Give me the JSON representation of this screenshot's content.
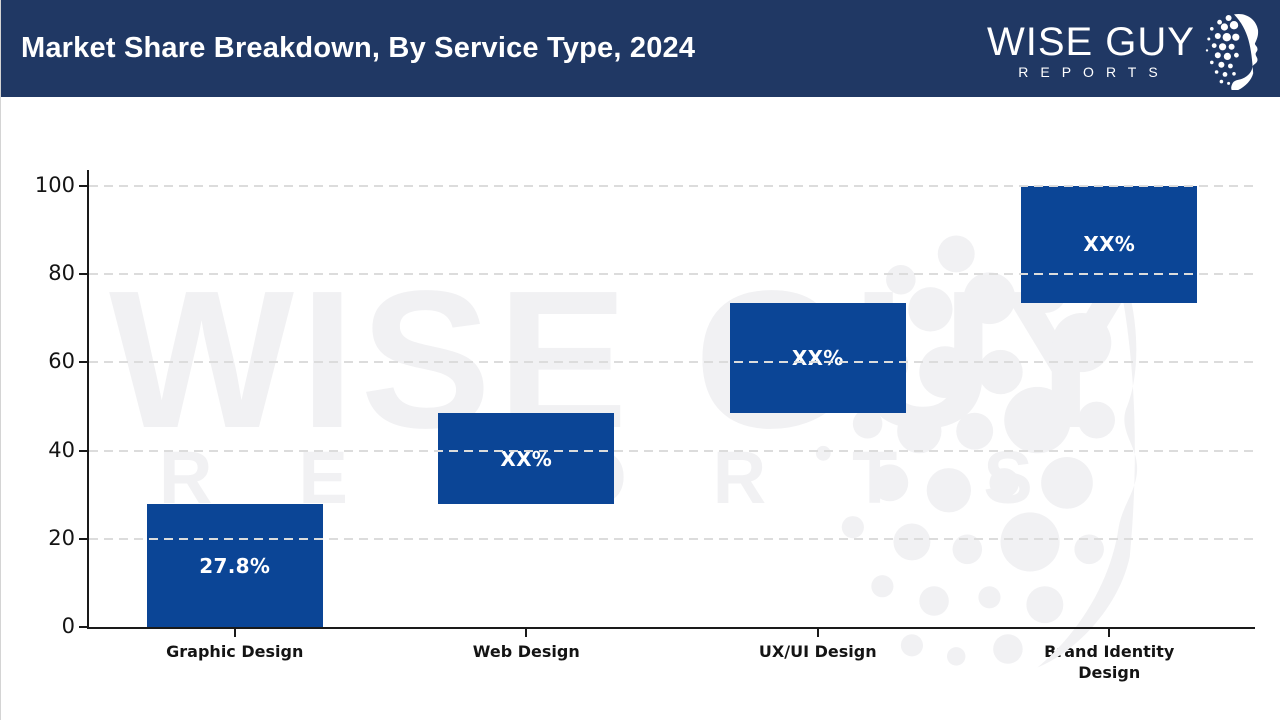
{
  "header": {
    "title": "Market Share Breakdown, By Service Type, 2024",
    "logo": {
      "line1": "WISE GUY",
      "line2": "REPORTS"
    }
  },
  "watermark": {
    "line1": "WISE GUY",
    "line2": "REPORTS"
  },
  "chart_data": {
    "type": "bar",
    "subtype": "waterfall-stacked",
    "title": "Market Share Breakdown, By Service Type, 2024",
    "categories": [
      "Graphic Design",
      "Web Design",
      "UX/UI Design",
      "Brand Identity Design"
    ],
    "segments": [
      {
        "category": "Graphic Design",
        "start": 0,
        "end": 27.8,
        "label": "27.8%"
      },
      {
        "category": "Web Design",
        "start": 27.8,
        "end": 48.6,
        "label": "XX%"
      },
      {
        "category": "UX/UI Design",
        "start": 48.6,
        "end": 73.5,
        "label": "XX%"
      },
      {
        "category": "Brand Identity Design",
        "start": 73.5,
        "end": 100,
        "label": "XX%"
      }
    ],
    "y_ticks": [
      0,
      20,
      40,
      60,
      80,
      100
    ],
    "ylim": [
      0,
      100
    ],
    "xlabel": "",
    "ylabel": "",
    "grid": "horizontal-dashed",
    "legend": "none",
    "bar_color": "#0b4596",
    "bar_label_color": "#ffffff"
  },
  "colors": {
    "header_bg": "#203864",
    "bar": "#0b4596",
    "grid": "#dcdcdc",
    "axis": "#1a1a1a",
    "watermark": "#f1f1f3"
  }
}
